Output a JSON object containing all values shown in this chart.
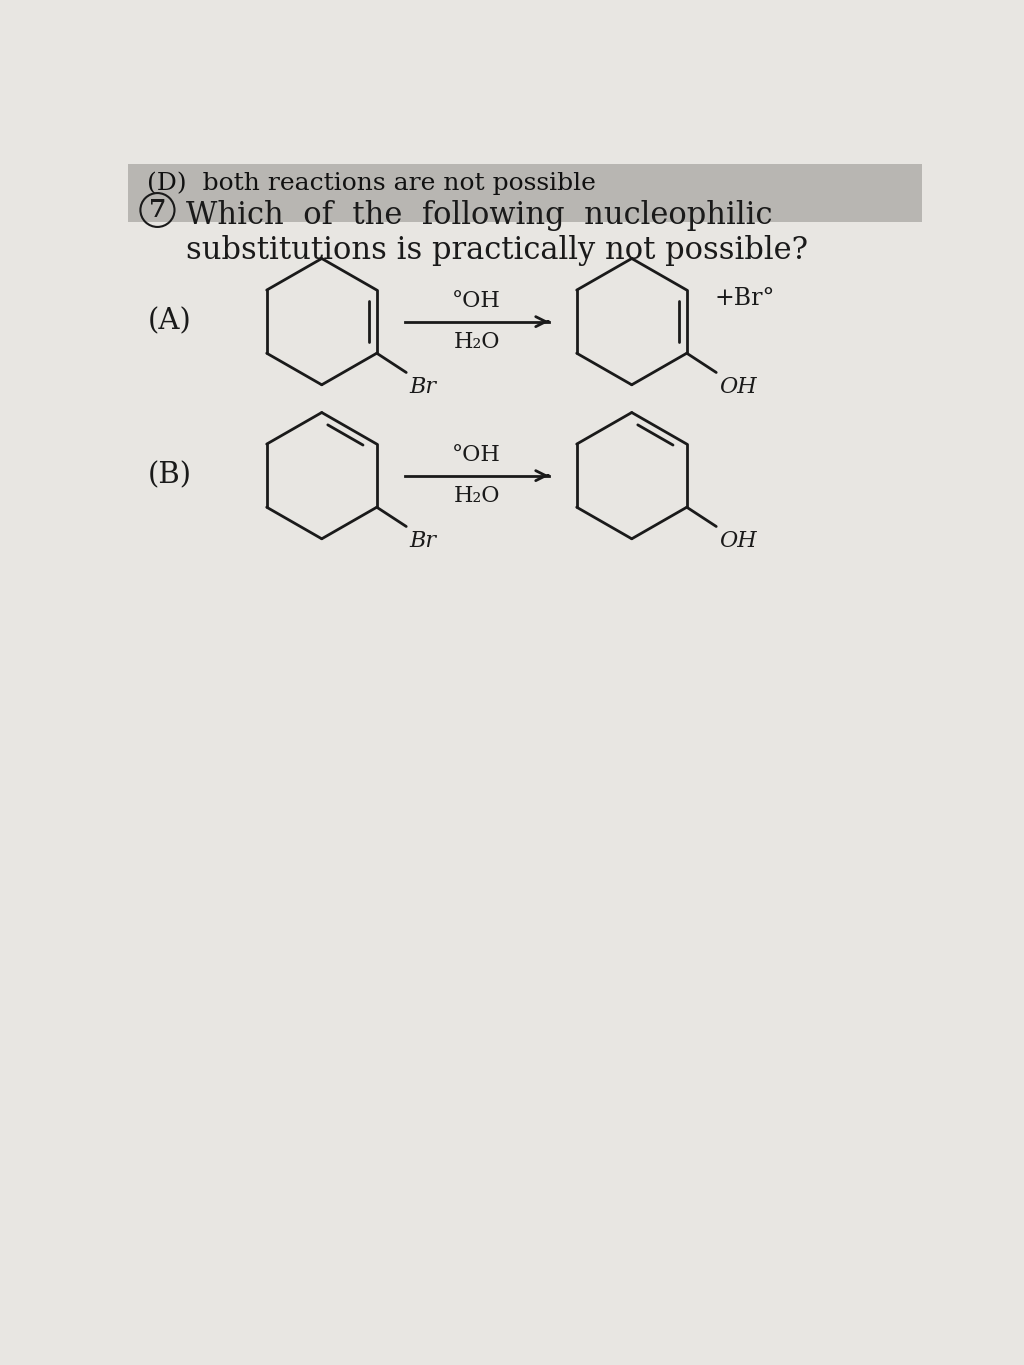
{
  "prev_line": "(D)  both reactions are not possible",
  "question_num": "7.",
  "title_line1": "Which  of  the  following  nucleophilic",
  "title_line2": "substitutions is practically not possible?",
  "label_A": "(A)",
  "label_B": "(B)",
  "reagent_oh": "°OH",
  "reagent_h2o": "H₂O",
  "br_label": "Br",
  "oh_label": "OH",
  "plus_br": "+Br°",
  "bg_color": "#e8e6e2",
  "bg_top_color": "#c8c6c2",
  "text_color": "#1a1a1a",
  "line_color": "#1a1a1a",
  "lw": 2.0,
  "hex_size": 0.82,
  "font_size_title": 22,
  "font_size_label": 21,
  "font_size_struct": 16,
  "font_size_reagent": 16,
  "font_size_prev": 18
}
